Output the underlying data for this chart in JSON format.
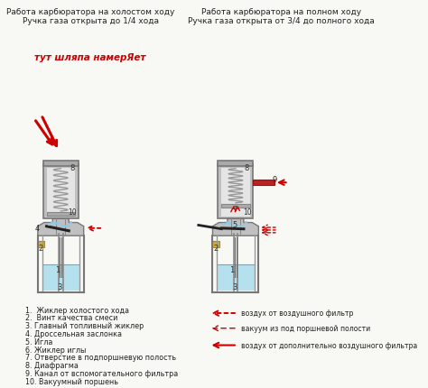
{
  "title_left": "Работа карбюратора на холостом ходу\nРучка газа открыта до 1/4 хода",
  "title_right": "Работа карбюратора на полном ходу\nРучка газа открыта от 3/4 до полного хода",
  "watermark": "тут шляпа намерЯет",
  "legend_left": [
    "1.  Жиклер холостого хода",
    "2.  Винт качества смеси",
    "3. Главный топливный жиклер",
    "4. Дроссельная заслонка",
    "5. Игла",
    "6. Жиклер иглы",
    "7. Отверстие в подпоршневую полость",
    "8. Диафрагма",
    "9. Канал от вспомогательного фильтра",
    "10. Вакуумный поршень"
  ],
  "legend_right_labels": [
    "воздух от воздушного фильтр",
    "вакуум из под поршневой полости",
    "воздух от дополнительно воздушного фильтра"
  ],
  "bg_color": "#f8f8f4",
  "text_color": "#222222",
  "red_color": "#cc0000",
  "watermark_color": "#cc0000",
  "font_size_title": 6.5,
  "font_size_legend": 5.8,
  "figsize": [
    4.74,
    4.31
  ],
  "dpi": 100
}
